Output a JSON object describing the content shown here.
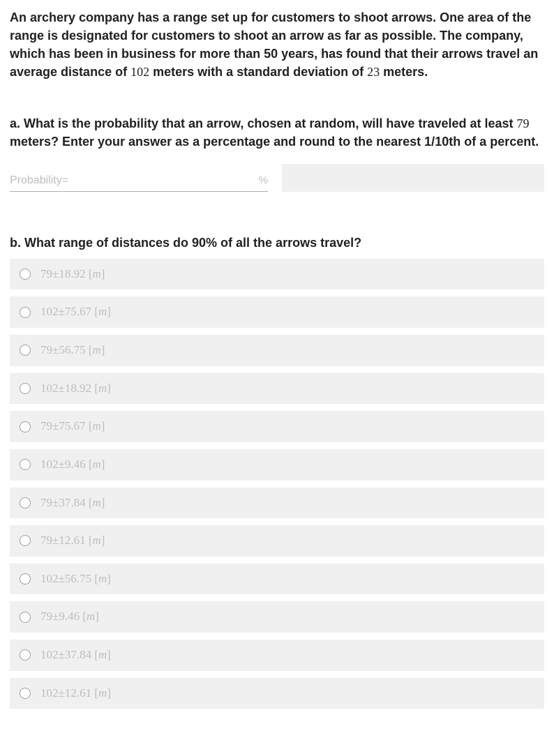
{
  "intro": {
    "part1": "An archery company has a range set up for customers to shoot arrows. One area of the range is designated for customers to shoot an arrow as far as possible. The company, which has been in business for more than 50 years, has found that their arrows travel an average distance of ",
    "mean": "102",
    "part2": " meters with a standard deviation of ",
    "sd": "23",
    "part3": " meters."
  },
  "qa": {
    "part1": "a. What is the probability that an arrow, chosen at random, will have traveled at least ",
    "value": "79",
    "part2": " meters? Enter your answer as a percentage and round to the nearest 1/10th of a percent."
  },
  "input": {
    "placeholder": "Probability=",
    "unit": "%"
  },
  "qb": {
    "text": "b. What range of distances do 90% of all the arrows travel?"
  },
  "options": [
    {
      "base": "79",
      "pm": "18.92"
    },
    {
      "base": "102",
      "pm": "75.67"
    },
    {
      "base": "79",
      "pm": "56.75"
    },
    {
      "base": "102",
      "pm": "18.92"
    },
    {
      "base": "79",
      "pm": "75.67"
    },
    {
      "base": "102",
      "pm": "9.46"
    },
    {
      "base": "79",
      "pm": "37.84"
    },
    {
      "base": "79",
      "pm": "12.61"
    },
    {
      "base": "102",
      "pm": "56.75"
    },
    {
      "base": "79",
      "pm": "9.46"
    },
    {
      "base": "102",
      "pm": "37.84"
    },
    {
      "base": "102",
      "pm": "12.61"
    }
  ],
  "unit_label": "m"
}
